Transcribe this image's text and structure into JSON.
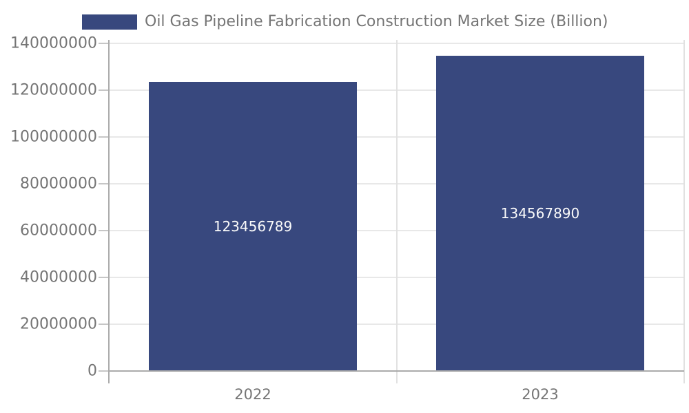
{
  "chart_data": {
    "type": "bar",
    "title": "Oil Gas Pipeline Fabrication Construction Market Size (Billion)",
    "legend_position": "top",
    "categories": [
      "2022",
      "2023"
    ],
    "values": [
      123456789,
      134567890
    ],
    "data_labels": [
      "123456789",
      "134567890"
    ],
    "xlabel": "",
    "ylabel": "",
    "ylim": [
      0,
      140000000
    ],
    "ytick_labels": [
      "0",
      "20000000",
      "40000000",
      "60000000",
      "80000000",
      "100000000",
      "120000000",
      "140000000"
    ],
    "grid": true,
    "colors": {
      "bar": "#38487E",
      "bar_label": "#FAFAFA",
      "axis_text": "#757575",
      "axis_line": "#ABABAB",
      "gridline": "#E8E8E8",
      "boundary_line": "#E1E1E1",
      "tick": "#C6C6C6",
      "background": "#FFFFFF"
    }
  }
}
